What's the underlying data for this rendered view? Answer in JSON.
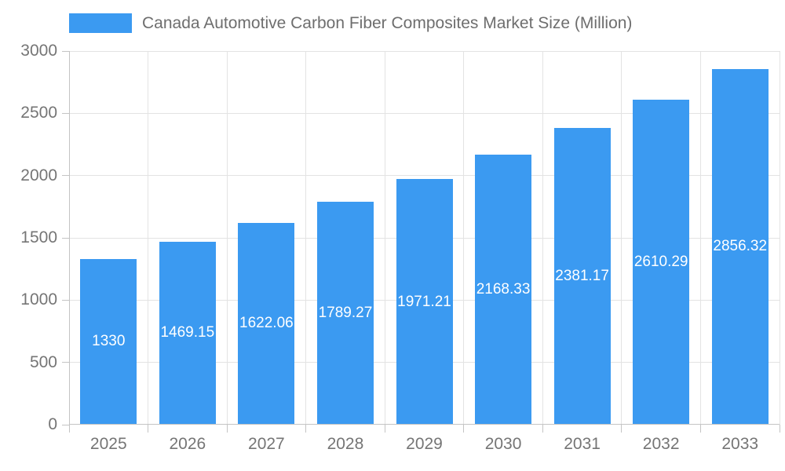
{
  "chart_data": {
    "type": "bar",
    "title": "Canada Automotive Carbon Fiber Composites Market Size (Million)",
    "categories": [
      "2025",
      "2026",
      "2027",
      "2028",
      "2029",
      "2030",
      "2031",
      "2032",
      "2033"
    ],
    "values": [
      1330,
      1469.15,
      1622.06,
      1789.27,
      1971.21,
      2168.33,
      2381.17,
      2610.29,
      2856.32
    ],
    "value_labels": [
      "1330",
      "1469.15",
      "1622.06",
      "1789.27",
      "1971.21",
      "2168.33",
      "2381.17",
      "2610.29",
      "2856.32"
    ],
    "xlabel": "",
    "ylabel": "",
    "ylim": [
      0,
      3000
    ],
    "yticks": [
      0,
      500,
      1000,
      1500,
      2000,
      2500,
      3000
    ],
    "grid": true,
    "legend_position": "top-left",
    "colors": {
      "bar": "#3b9af1",
      "bar_label": "#ffffff",
      "axis_text": "#757575",
      "legend_text": "#6e6e6e",
      "grid_line": "#e3e3e3",
      "axis_line": "#c4c4c4",
      "background": "#ffffff"
    }
  }
}
